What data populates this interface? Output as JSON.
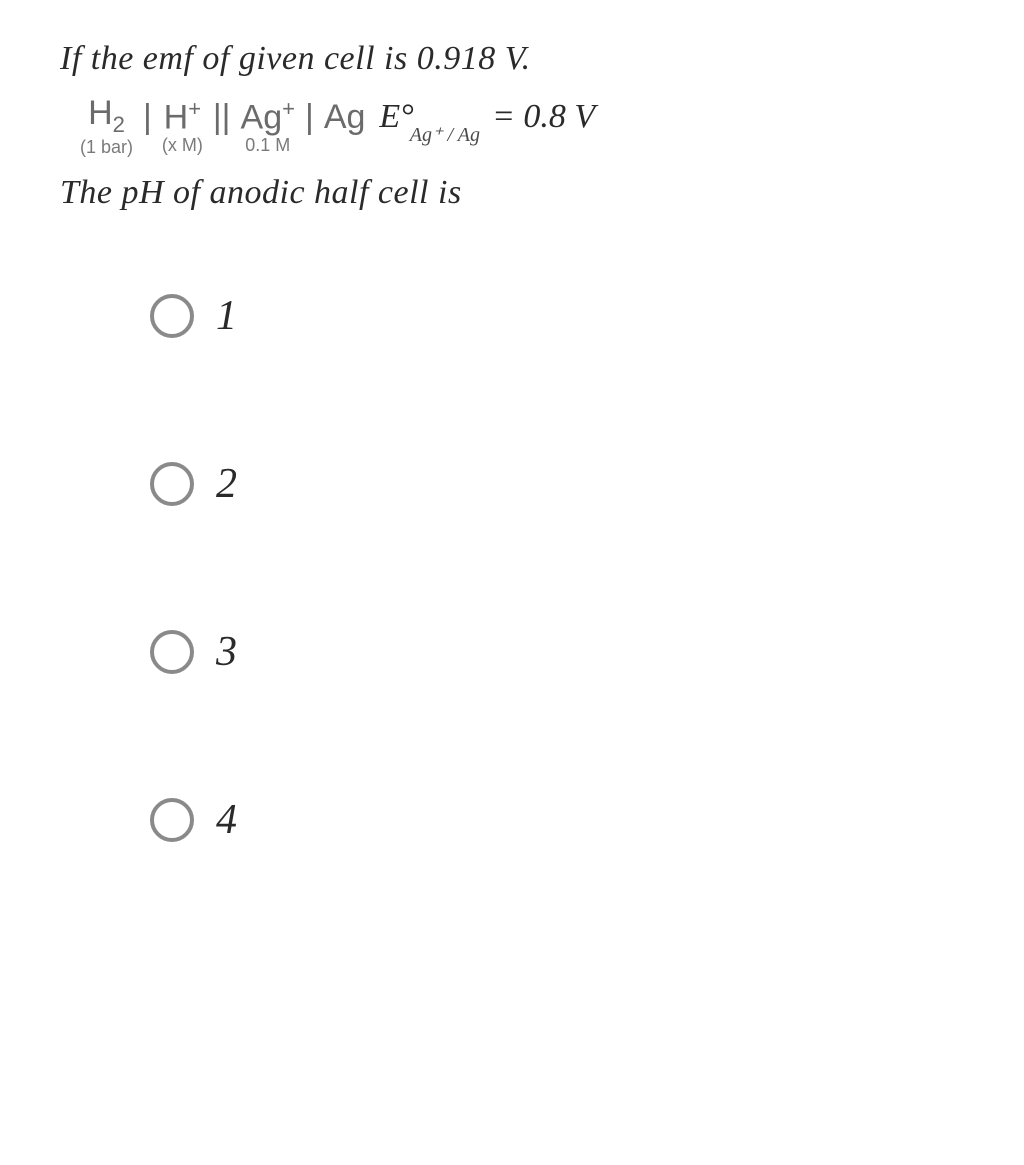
{
  "stem": {
    "line1": "If the emf of given cell is 0.918 V.",
    "line3": "The pH of anodic half cell is"
  },
  "cell": {
    "h2_top": "H",
    "h2_sub": "2",
    "h2_bot": "(1 bar)",
    "hplus_top_h": "H",
    "hplus_sup": "+",
    "hplus_bot": "(x M)",
    "agplus_top_ag": "Ag",
    "agplus_sup": "+",
    "agplus_bot": "0.1 M",
    "ag_el": "Ag",
    "bar_single": "|",
    "bar_double": "||",
    "eps_symbol": "E°",
    "eps_sub": "Ag⁺ / Ag",
    "eq_val": "= 0.8 V"
  },
  "options": [
    {
      "label": "1"
    },
    {
      "label": "2"
    },
    {
      "label": "3"
    },
    {
      "label": "4"
    }
  ],
  "colors": {
    "text_primary": "#2a2a2a",
    "text_muted": "#6b6b6b",
    "radio_border": "#8a8a8a",
    "background": "#ffffff"
  }
}
